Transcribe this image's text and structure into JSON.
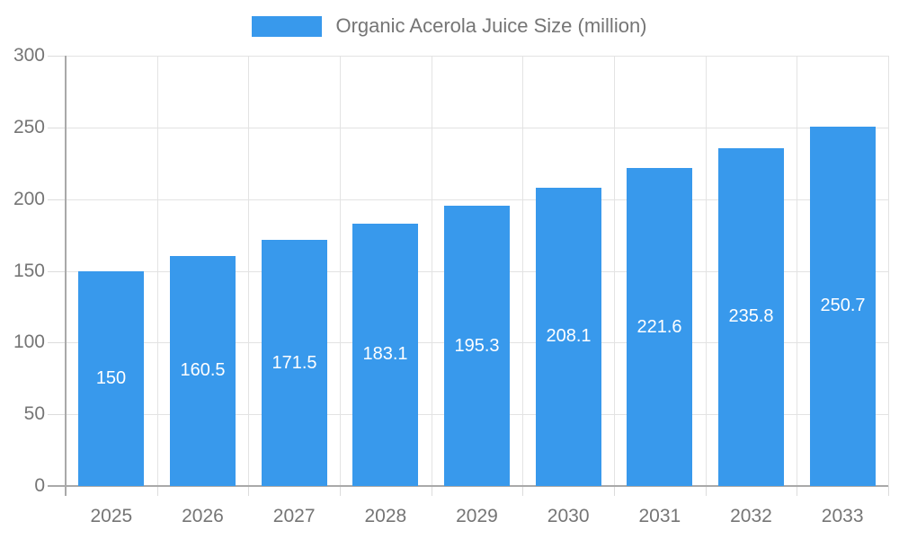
{
  "legend": {
    "label": "Organic Acerola Juice Size (million)"
  },
  "colors": {
    "bar": "#3899ec",
    "axis_text": "#757575",
    "grid": "#e3e3e3",
    "axis_line": "#a9a9a9",
    "value_label": "#ffffff"
  },
  "chart_data": {
    "type": "bar",
    "title": "",
    "legend": "Organic Acerola Juice Size (million)",
    "legend_position": "top-center",
    "categories": [
      "2025",
      "2026",
      "2027",
      "2028",
      "2029",
      "2030",
      "2031",
      "2032",
      "2033"
    ],
    "values": [
      150,
      160.5,
      171.5,
      183.1,
      195.3,
      208.1,
      221.6,
      235.8,
      250.7
    ],
    "xlabel": "",
    "ylabel": "",
    "ylim": [
      0,
      300
    ],
    "ytick_step": 50,
    "ytick_labels": [
      "0",
      "50",
      "100",
      "150",
      "200",
      "250",
      "300"
    ],
    "grid": true,
    "bar_label_position": "inside-center"
  }
}
